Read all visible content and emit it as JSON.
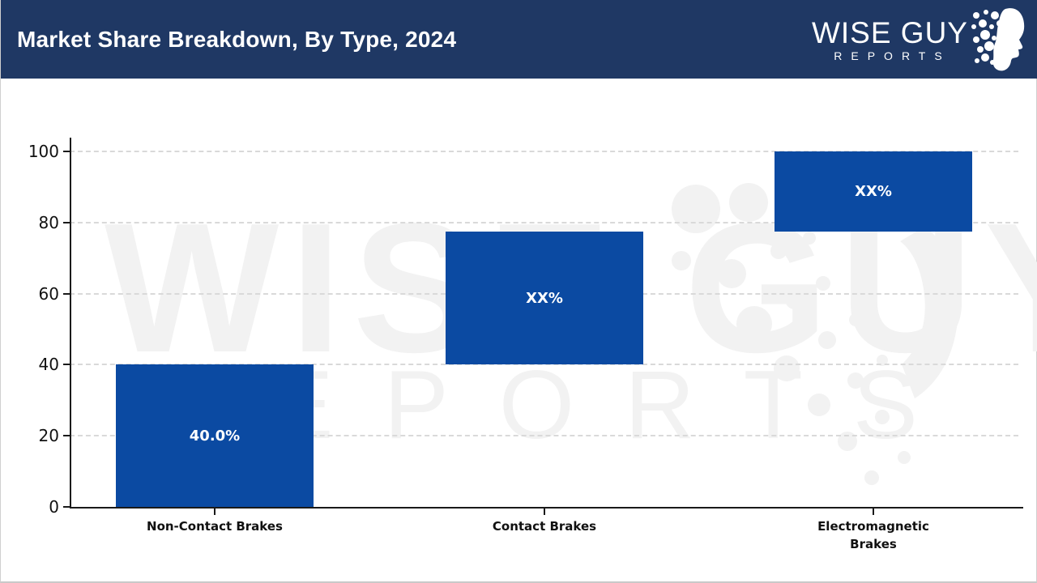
{
  "header": {
    "title": "Market Share Breakdown, By Type, 2024",
    "logo": {
      "line1": "WISE GUY",
      "line2": "REPORTS",
      "icon": "dotted-head-profile-icon"
    }
  },
  "watermark": {
    "line1": "WISE GUY",
    "line2": "REPORTS"
  },
  "chart_data": {
    "type": "bar",
    "subtype": "stacked-waterfall-segments",
    "title": "Market Share Breakdown, By Type, 2024",
    "categories": [
      "Non-Contact Brakes",
      "Contact Brakes",
      "Electromagnetic Brakes"
    ],
    "bars": [
      {
        "category": "Non-Contact Brakes",
        "start": 0,
        "end": 40,
        "label": "40.0%"
      },
      {
        "category": "Contact Brakes",
        "start": 40,
        "end": 77.5,
        "label": "XX%"
      },
      {
        "category": "Electromagnetic Brakes",
        "start": 77.5,
        "end": 100,
        "label": "XX%"
      }
    ],
    "xlabel": "",
    "ylabel": "",
    "ylim": [
      0,
      100
    ],
    "yticks": [
      0,
      20,
      40,
      60,
      80,
      100
    ],
    "grid": "horizontal-dashed",
    "legend": "none",
    "bar_color": "#0b4aa2",
    "bar_label_color": "#ffffff",
    "axis_color": "#1a1a1a",
    "gridline_color": "#d9d9d9",
    "header_color": "#1f3864"
  }
}
